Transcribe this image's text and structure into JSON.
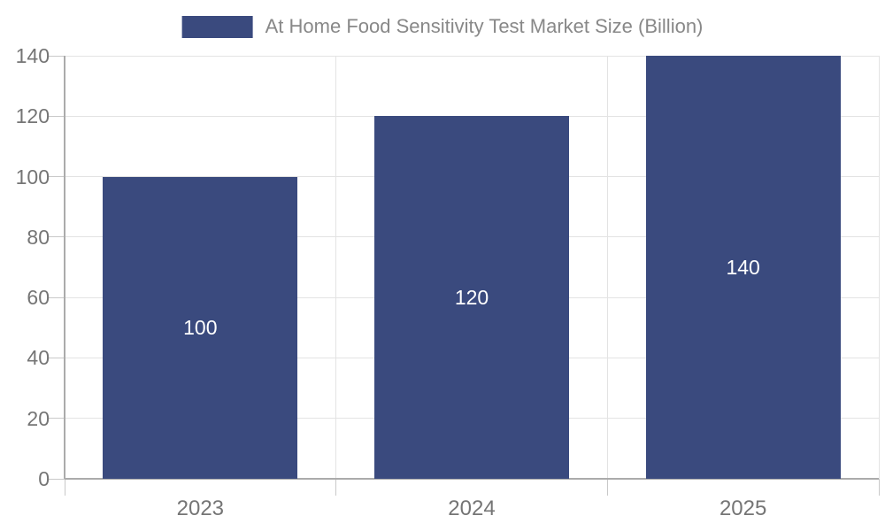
{
  "legend": {
    "label": "At Home Food Sensitivity Test Market Size (Billion)"
  },
  "chart_data": {
    "type": "bar",
    "title": "At Home Food Sensitivity Test Market Size (Billion)",
    "categories": [
      "2023",
      "2024",
      "2025"
    ],
    "values": [
      100,
      120,
      140
    ],
    "bar_labels": [
      "100",
      "120",
      "140"
    ],
    "xlabel": "",
    "ylabel": "",
    "ylim": [
      0,
      140
    ],
    "yticks": [
      0,
      20,
      40,
      60,
      80,
      100,
      120,
      140
    ],
    "grid": true,
    "legend_position": "top-center",
    "colors": {
      "bar": "#3A4A7E",
      "value_label": "#ffffff",
      "axis_line": "#ababab",
      "gridline": "#e3e3e3",
      "tick_mark": "#c9c9c9",
      "tick_label": "#757575",
      "legend_text": "#888888"
    }
  }
}
